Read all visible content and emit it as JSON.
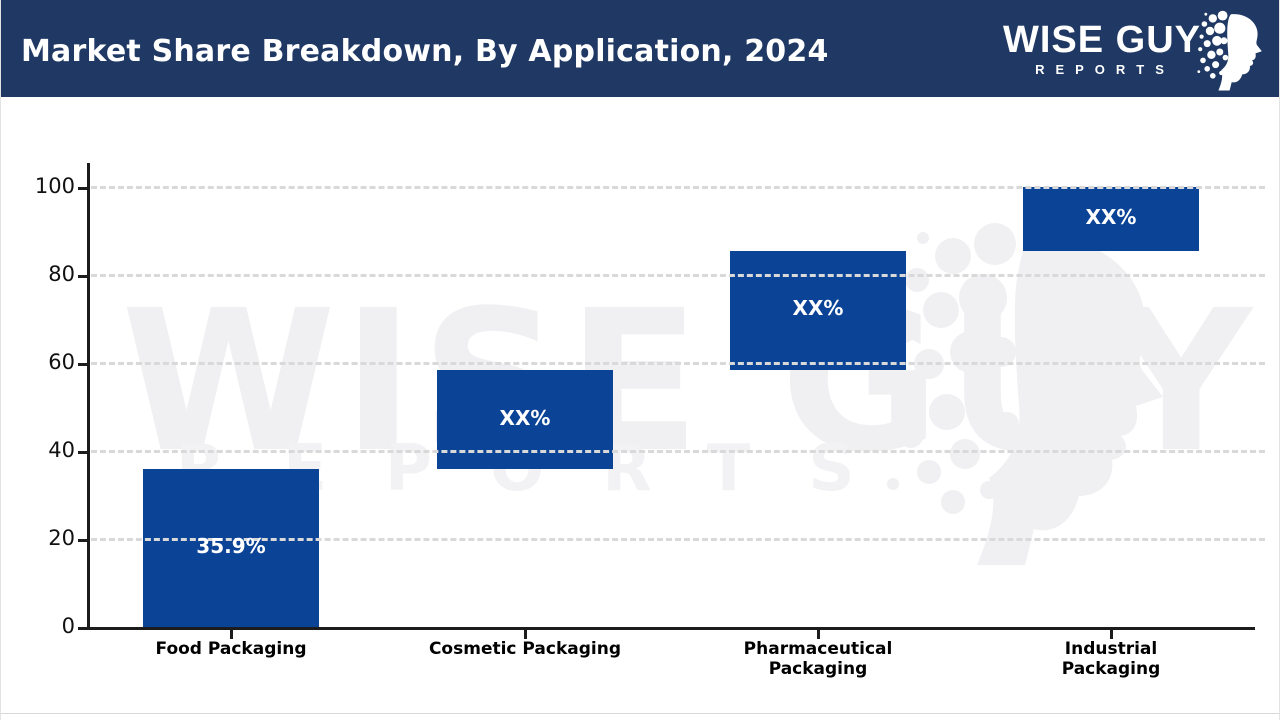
{
  "header": {
    "title": "Market Share Breakdown, By Application, 2024",
    "logo": {
      "primary": "WISE GUY",
      "secondary": "REPORTS"
    }
  },
  "watermark": {
    "primary": "WISE GUY",
    "secondary": "REPORTS"
  },
  "colors": {
    "header_bg": "#1f3864",
    "bar_fill": "#0b4397",
    "bar_label": "#ffffff",
    "axis": "#1c1c1c",
    "gridline": "#d9d9d9",
    "watermark": "#f0f0f2",
    "background": "#ffffff"
  },
  "chart_data": {
    "type": "bar",
    "subtype": "waterfall",
    "title": "Market Share Breakdown, By Application, 2024",
    "xlabel": "",
    "ylabel": "",
    "ylim": [
      0,
      100
    ],
    "yticks": [
      0,
      20,
      40,
      60,
      80,
      100
    ],
    "grid": "horizontal-dashed",
    "legend": "none",
    "categories": [
      "Food Packaging",
      "Cosmetic Packaging",
      "Pharmaceutical Packaging",
      "Industrial Packaging"
    ],
    "category_lines": [
      [
        "Food Packaging"
      ],
      [
        "Cosmetic Packaging"
      ],
      [
        "Pharmaceutical",
        "Packaging"
      ],
      [
        "Industrial",
        "Packaging"
      ]
    ],
    "series": [
      {
        "name": "Market Share (%)",
        "segments": [
          {
            "category": "Food Packaging",
            "start": 0,
            "end": 35.9,
            "label": "35.9%"
          },
          {
            "category": "Cosmetic Packaging",
            "start": 35.9,
            "end": 58.4,
            "label": "XX%"
          },
          {
            "category": "Pharmaceutical Packaging",
            "start": 58.4,
            "end": 85.5,
            "label": "XX%"
          },
          {
            "category": "Industrial Packaging",
            "start": 85.5,
            "end": 100,
            "label": "XX%"
          }
        ]
      }
    ]
  }
}
